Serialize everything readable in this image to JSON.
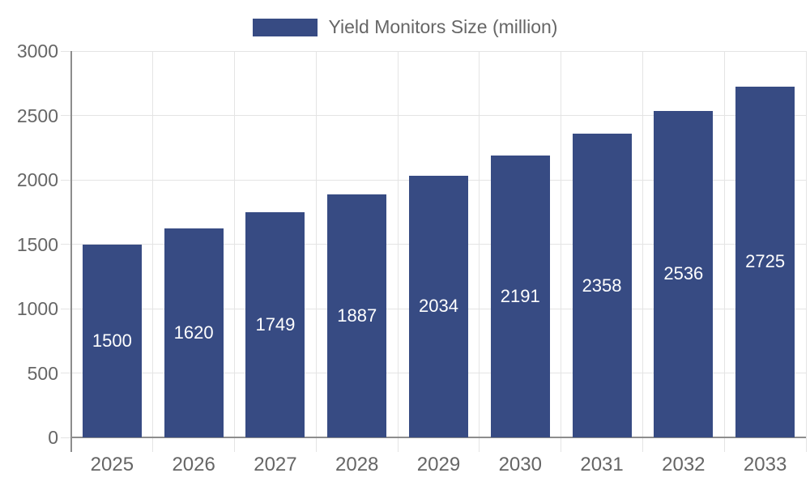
{
  "chart_data": {
    "type": "bar",
    "title": "Yield Monitors Size (million)",
    "categories": [
      "2025",
      "2026",
      "2027",
      "2028",
      "2029",
      "2030",
      "2031",
      "2032",
      "2033"
    ],
    "values": [
      1500,
      1620,
      1749,
      1887,
      2034,
      2191,
      2358,
      2536,
      2725
    ],
    "xlabel": "",
    "ylabel": "",
    "ylim": [
      0,
      3000
    ],
    "yticks": [
      0,
      500,
      1000,
      1500,
      2000,
      2500,
      3000
    ],
    "grid": true,
    "legend_position": "top-center",
    "colors": {
      "bar_fill": "#374B83",
      "bar_value_text": "#ffffff",
      "axis_text": "#666666",
      "gridline": "#e4e4e4",
      "axis_line": "#8d8d8d",
      "background": "#ffffff"
    }
  }
}
